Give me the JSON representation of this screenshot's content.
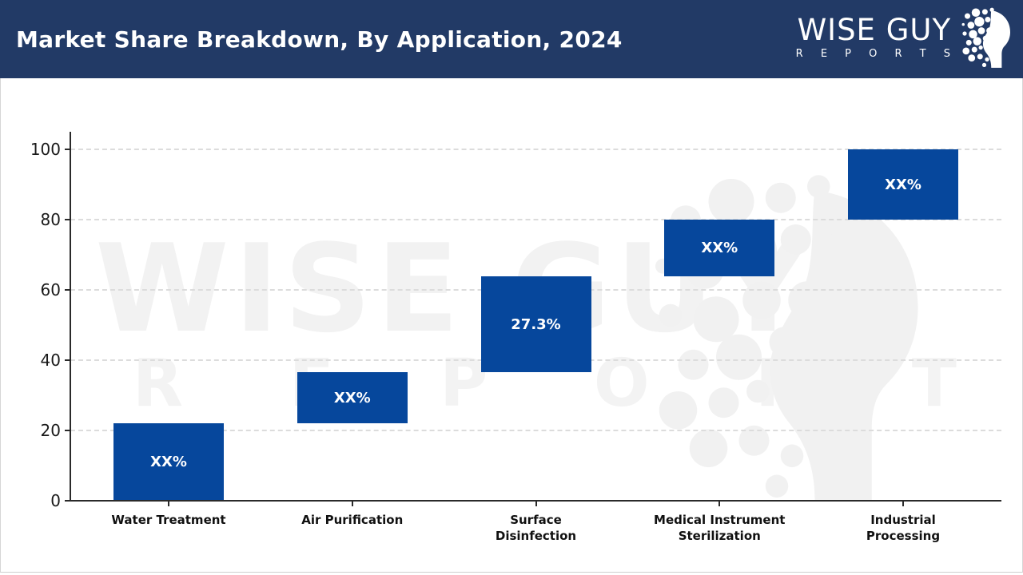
{
  "header": {
    "title": "Market Share Breakdown, By Application, 2024",
    "logo_line1": "WISE GUY",
    "logo_line2": "R E P O R T S"
  },
  "watermark": {
    "line1": "WISE GUY",
    "line2": "R E P O R T S"
  },
  "colors": {
    "header_bg": "#223a66",
    "bar_blue": "#06479c",
    "gridline": "#dcdcdc",
    "watermark": "#f2f2f2"
  },
  "chart_data": {
    "type": "bar",
    "subtype": "waterfall",
    "title": "Market Share Breakdown, By Application, 2024",
    "categories": [
      "Water Treatment",
      "Air Purification",
      "Surface\nDisinfection",
      "Medical Instrument\nSterilization",
      "Industrial\nProcessing"
    ],
    "segments": [
      {
        "category": "Water Treatment",
        "start": 0,
        "end": 22,
        "label": "XX%"
      },
      {
        "category": "Air Purification",
        "start": 22,
        "end": 36.5,
        "label": "XX%"
      },
      {
        "category": "Surface Disinfection",
        "start": 36.5,
        "end": 63.8,
        "label": "27.3%"
      },
      {
        "category": "Medical Instrument Sterilization",
        "start": 63.8,
        "end": 80,
        "label": "XX%"
      },
      {
        "category": "Industrial Processing",
        "start": 80,
        "end": 100,
        "label": "XX%"
      }
    ],
    "yticks": [
      0,
      20,
      40,
      60,
      80,
      100
    ],
    "ylim": [
      0,
      100
    ],
    "xlabel": "",
    "ylabel": "",
    "grid": "horizontal-dashed",
    "legend": "none",
    "bar_color": "#06479c"
  }
}
